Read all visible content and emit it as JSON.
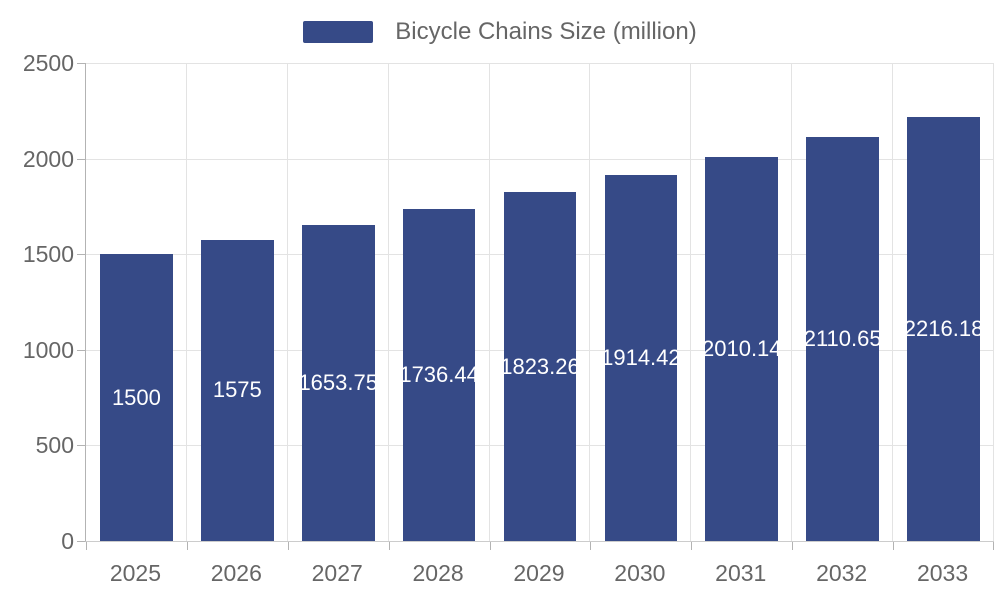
{
  "legend": {
    "label": "Bicycle Chains Size (million)"
  },
  "chart_data": {
    "type": "bar",
    "title": "Bicycle Chains Size (million)",
    "series_name": "Bicycle Chains Size (million)",
    "categories": [
      "2025",
      "2026",
      "2027",
      "2028",
      "2029",
      "2030",
      "2031",
      "2032",
      "2033"
    ],
    "values": [
      1500,
      1575,
      1653.75,
      1736.44,
      1823.26,
      1914.42,
      2010.14,
      2110.65,
      2216.18
    ],
    "value_labels": [
      "1500",
      "1575",
      "1653.75",
      "1736.44",
      "1823.26",
      "1914.42",
      "2010.14",
      "2110.65",
      "2216.18"
    ],
    "xlabel": "",
    "ylabel": "",
    "ylim": [
      0,
      2500
    ],
    "yticks": [
      0,
      500,
      1000,
      1500,
      2000,
      2500
    ],
    "grid": true,
    "legend_position": "top-center",
    "colors": {
      "bar": "#364a87",
      "bar_value_label": "#ffffff",
      "axis_text": "#666666",
      "gridline": "#e3e3e3",
      "axis_line": "#b3b3b3"
    }
  }
}
